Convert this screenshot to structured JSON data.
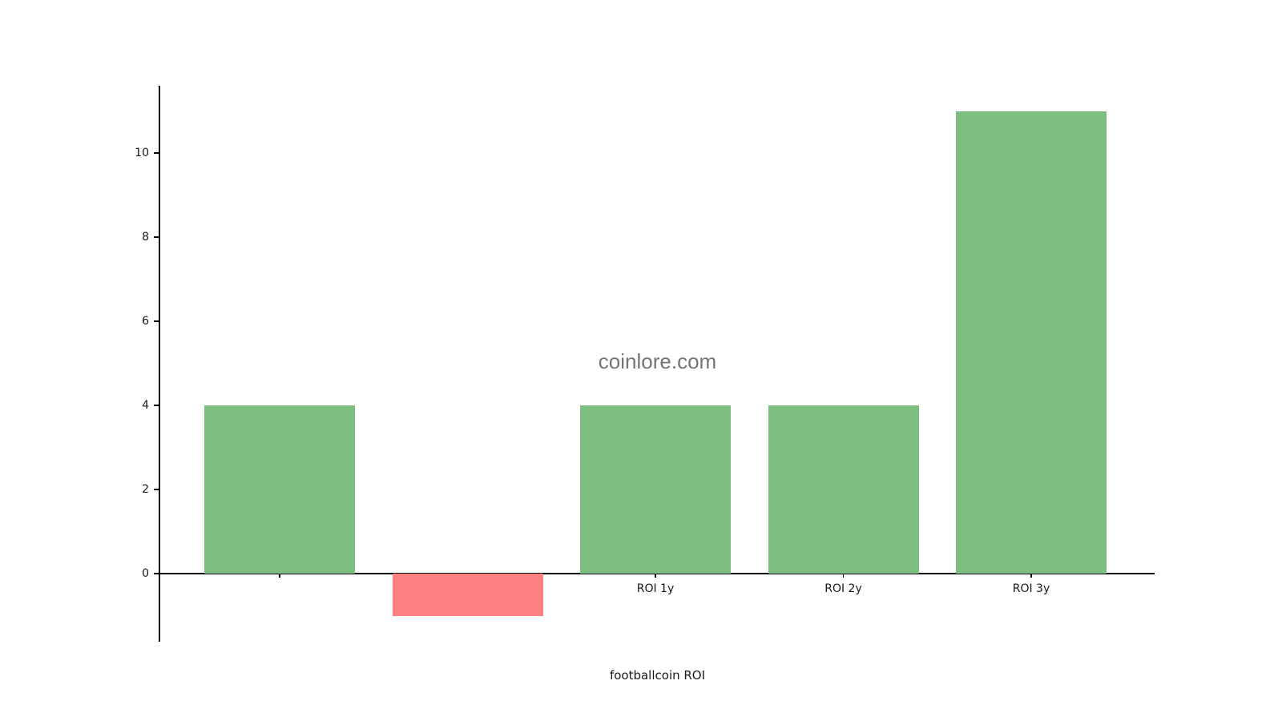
{
  "watermark": "coinlore.com",
  "chart_data": {
    "type": "bar",
    "title": "",
    "xlabel": "footballcoin ROI",
    "ylabel": "",
    "categories": [
      "",
      "",
      "ROI 1y",
      "ROI 2y",
      "ROI 3y"
    ],
    "values": [
      4,
      -1,
      4,
      4,
      11
    ],
    "y_ticks": [
      0,
      2,
      4,
      6,
      8,
      10
    ],
    "ylim": [
      -1.6,
      11.6
    ],
    "grid": false,
    "legend": false,
    "colors": {
      "positive_bar": "#7dbf81",
      "negative_bar": "#ff8181",
      "axis": "#000000",
      "tick_text": "#1a1a1a",
      "watermark_text": "#757575"
    }
  }
}
